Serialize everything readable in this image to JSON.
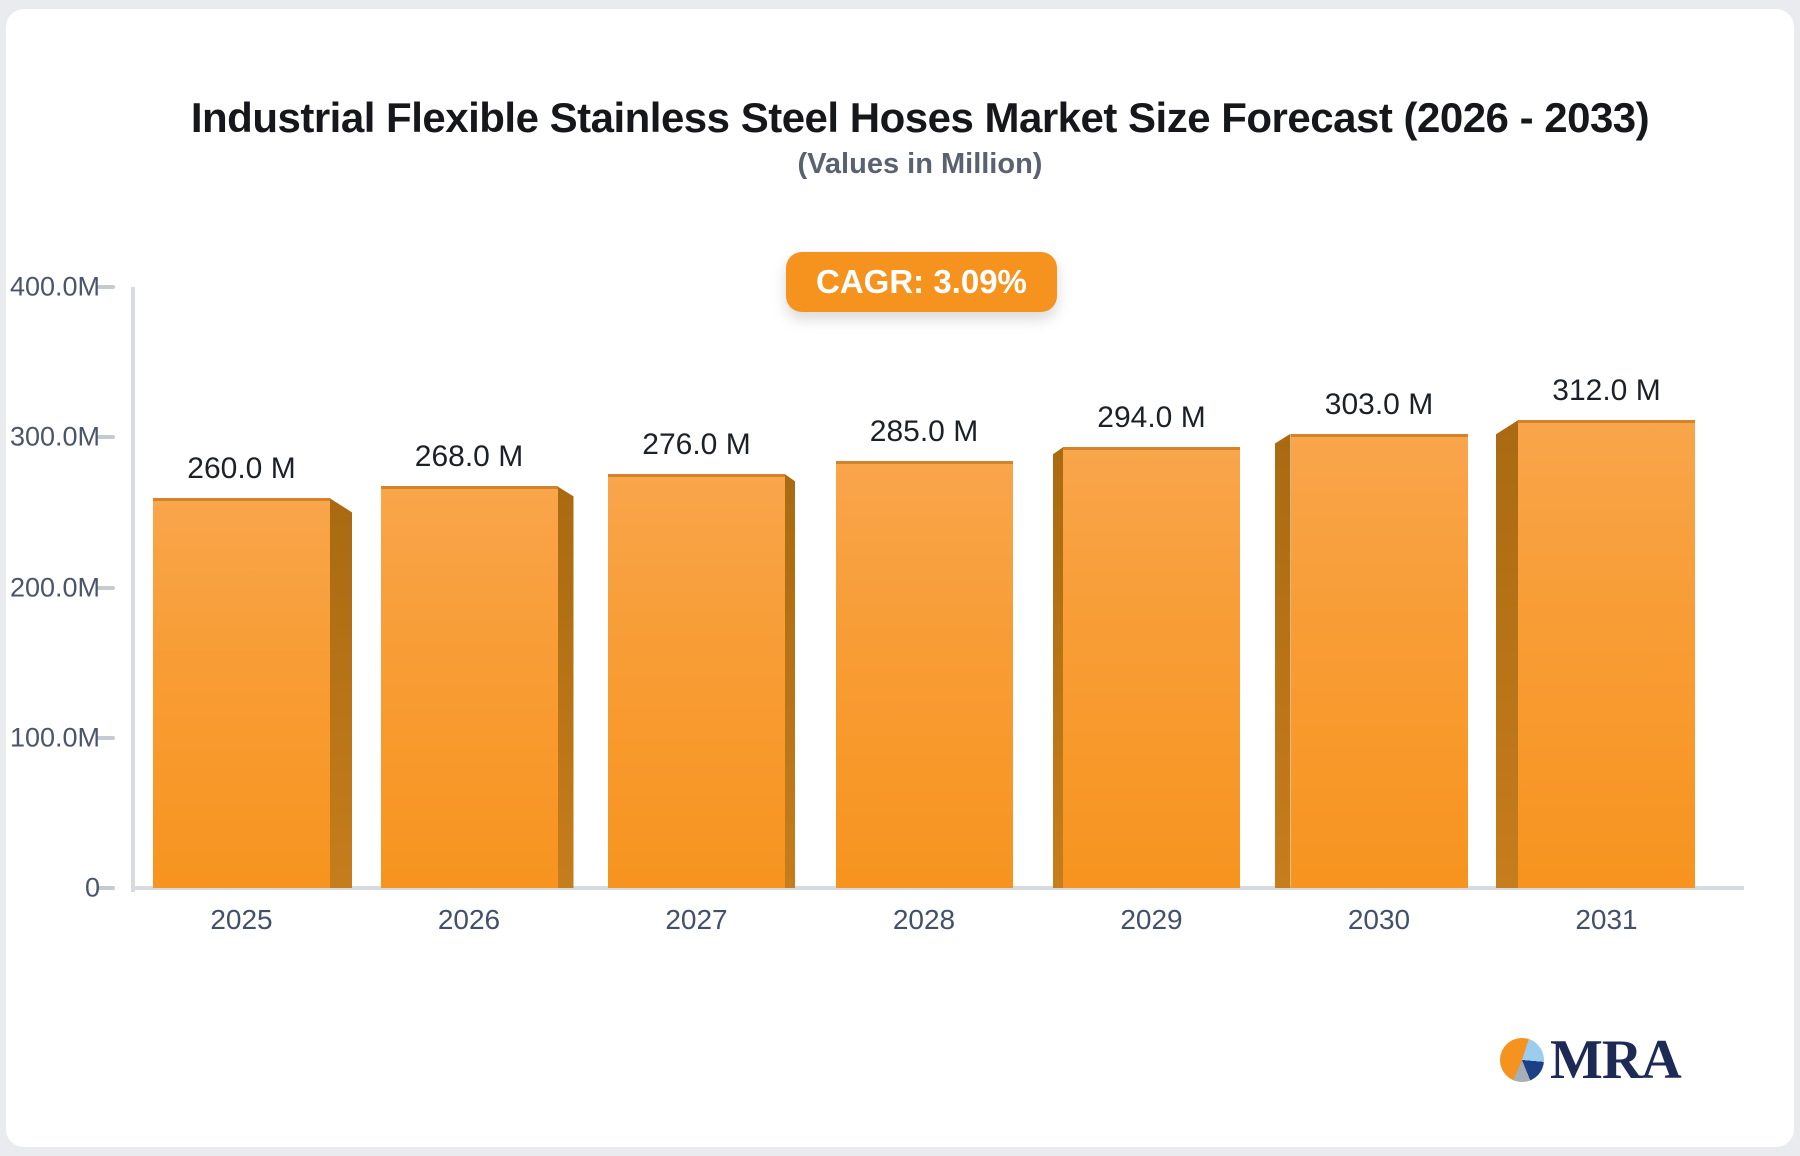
{
  "page": {
    "background_color": "#e9ebee",
    "card_color": "#ffffff"
  },
  "header": {
    "title": "Industrial Flexible Stainless Steel Hoses Market Size Forecast (2026 - 2033)",
    "subtitle": "(Values in Million)"
  },
  "badge": {
    "label": "CAGR: 3.09%",
    "background": "#f6921e",
    "text_color": "#ffffff"
  },
  "chart_data": {
    "type": "bar",
    "title": "Industrial Flexible Stainless Steel Hoses Market Size Forecast (2026 - 2033)",
    "subtitle": "(Values in Million)",
    "unit": "Million",
    "cagr_percent": 3.09,
    "categories": [
      "2025",
      "2026",
      "2027",
      "2028",
      "2029",
      "2030",
      "2031"
    ],
    "values": [
      260.0,
      268.0,
      276.0,
      285.0,
      294.0,
      303.0,
      312.0
    ],
    "value_labels": [
      "260.0 M",
      "268.0 M",
      "276.0 M",
      "285.0 M",
      "294.0 M",
      "303.0 M",
      "312.0 M"
    ],
    "ylim": [
      0,
      400
    ],
    "yticks": [
      400,
      300,
      200,
      100,
      0
    ],
    "ytick_labels": [
      "400.0M",
      "300.0M",
      "200.0M",
      "100.0M",
      "0"
    ],
    "xlabel": "",
    "ylabel": "",
    "grid": false,
    "legend": false,
    "bar_color_top": "#f9a54b",
    "bar_color_bottom": "#f7941f",
    "bar_side_color": "#b5711a",
    "axis_color": "#d7dade",
    "label_color": "#1c2128"
  },
  "logo": {
    "text": "MRA",
    "text_color": "#1d2a56",
    "pie_colors": [
      "#f6921e",
      "#9bcdee",
      "#1c4086",
      "#a9adb5"
    ]
  }
}
